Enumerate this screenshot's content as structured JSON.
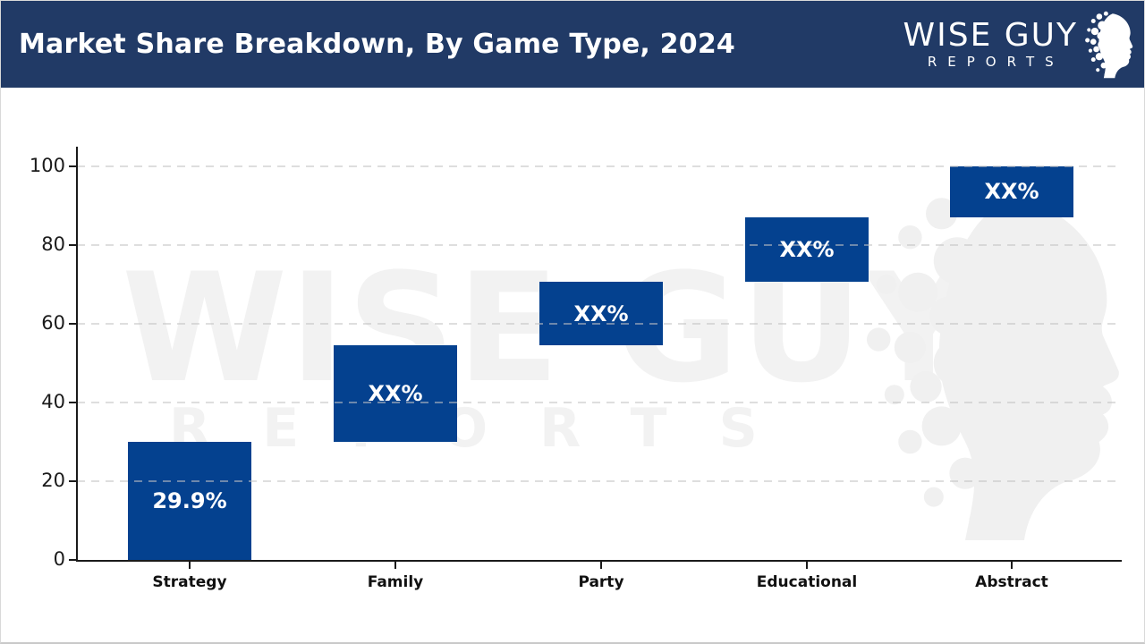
{
  "header": {
    "title": "Market Share Breakdown, By Game Type, 2024",
    "logo_line1": "WISE GUY",
    "logo_line2": "REPORTS",
    "bg_color": "#213a66"
  },
  "watermark": {
    "line1": "WISE GUY",
    "line2": "REPORTS"
  },
  "chart_data": {
    "type": "bar",
    "subtype": "waterfall-floating-bars",
    "title": "Market Share Breakdown, By Game Type, 2024",
    "categories": [
      "Strategy",
      "Family",
      "Party",
      "Educational",
      "Abstract"
    ],
    "segments": [
      {
        "category": "Strategy",
        "start": 0,
        "end": 29.9,
        "label": "29.9%"
      },
      {
        "category": "Family",
        "start": 29.9,
        "end": 54.5,
        "label": "XX%"
      },
      {
        "category": "Party",
        "start": 54.5,
        "end": 70.5,
        "label": "XX%"
      },
      {
        "category": "Educational",
        "start": 70.5,
        "end": 87.0,
        "label": "XX%"
      },
      {
        "category": "Abstract",
        "start": 87.0,
        "end": 100,
        "label": "XX%"
      }
    ],
    "xlabel": "",
    "ylabel": "",
    "yticks": [
      0,
      20,
      40,
      60,
      80,
      100
    ],
    "ylim": [
      0,
      104.8
    ],
    "grid": true,
    "grid_style": "dashed",
    "legend": false,
    "colors": {
      "bar": "#04418f",
      "bar_label": "#ffffff",
      "grid": "#c3c3c3",
      "axis": "#1a1a1a",
      "header_bg": "#213a66",
      "header_text": "#ffffff",
      "watermark": "#f2f2f2"
    }
  }
}
